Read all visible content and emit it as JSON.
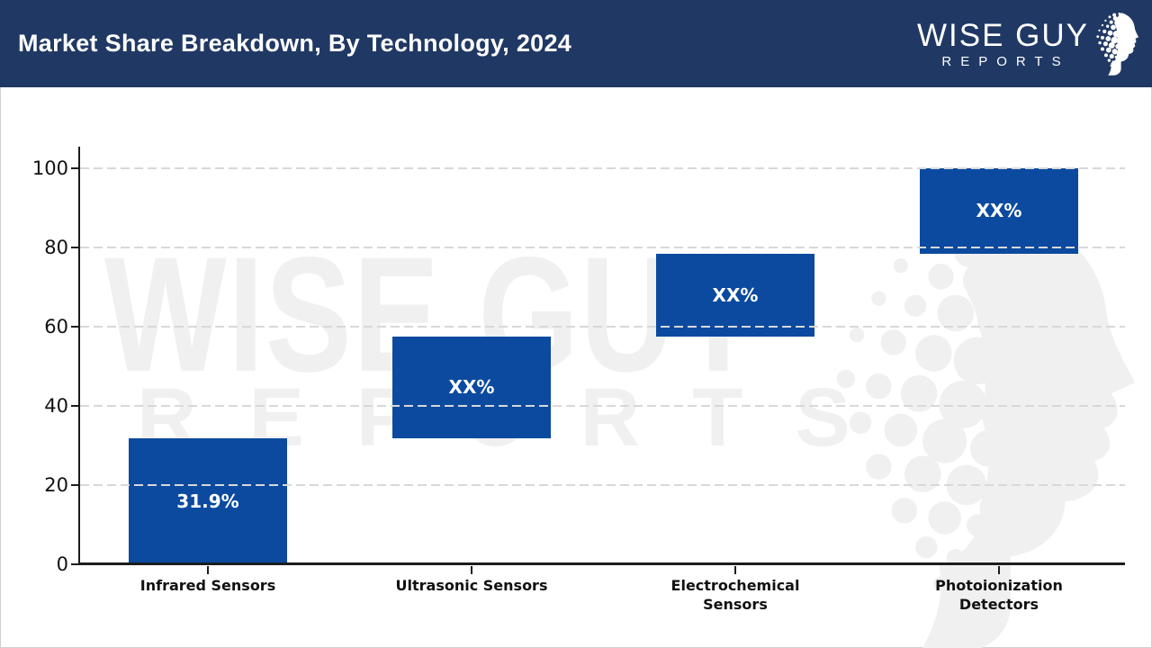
{
  "header": {
    "title": "Market Share Breakdown, By Technology, 2024",
    "logo": {
      "line1": "WISE GUY",
      "line2": "REPORTS"
    }
  },
  "watermark": {
    "line1": "WISE GUY",
    "line2": "REPORTS"
  },
  "colors": {
    "header_bg": "#203864",
    "bar": "#0b4a9f",
    "grid": "#d8d8d8",
    "axis": "#1c1c1c",
    "label": "#111111",
    "bar_label": "#ffffff",
    "watermark": "#f0f0f1",
    "frame_border": "#cfcfcf"
  },
  "chart_data": {
    "type": "bar",
    "subtype": "waterfall-steps",
    "title": "Market Share Breakdown, By Technology, 2024",
    "categories": [
      "Infrared Sensors",
      "Ultrasonic Sensors",
      "Electrochemical Sensors",
      "Photoionization Detectors"
    ],
    "segments": [
      {
        "category": "Infrared Sensors",
        "start": 0,
        "end": 31.9,
        "label": "31.9%"
      },
      {
        "category": "Ultrasonic Sensors",
        "start": 31.9,
        "end": 57.5,
        "label": "XX%"
      },
      {
        "category": "Electrochemical Sensors",
        "start": 57.5,
        "end": 78.3,
        "label": "XX%"
      },
      {
        "category": "Photoionization Detectors",
        "start": 78.3,
        "end": 100,
        "label": "XX%"
      }
    ],
    "xlabel": "",
    "ylabel": "",
    "ylim": [
      0,
      105
    ],
    "yticks": [
      0,
      20,
      40,
      60,
      80,
      100
    ],
    "grid": "dashed-horizontal-over-bars",
    "legend": "none",
    "unit": "%"
  }
}
